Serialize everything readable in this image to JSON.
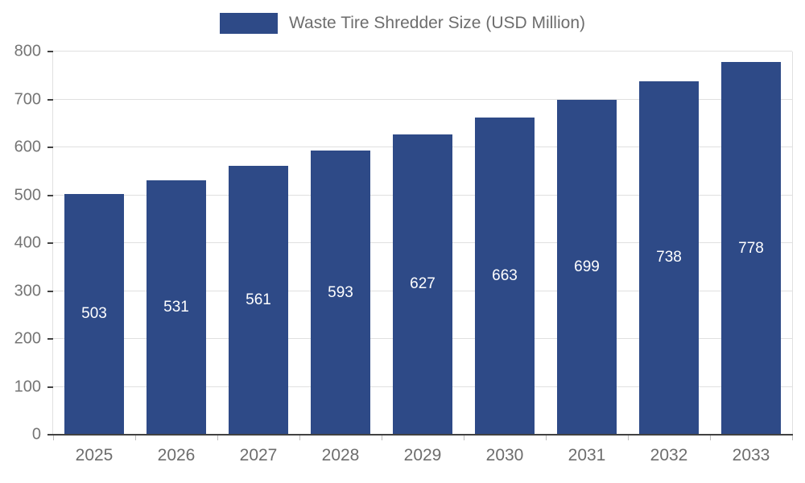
{
  "chart_data": {
    "type": "bar",
    "title": "Waste Tire Shredder Size (USD Million)",
    "categories": [
      "2025",
      "2026",
      "2027",
      "2028",
      "2029",
      "2030",
      "2031",
      "2032",
      "2033"
    ],
    "values": [
      503,
      531,
      561,
      593,
      627,
      663,
      699,
      738,
      778
    ],
    "xlabel": "",
    "ylabel": "",
    "ylim": [
      0,
      800
    ],
    "yticks": [
      0,
      100,
      200,
      300,
      400,
      500,
      600,
      700,
      800
    ],
    "grid": true,
    "legend_position": "top",
    "bar_labels_inside": true
  },
  "colors": {
    "bar": "#2E4A87",
    "grid": "#e0e0e0",
    "axis": "#424242",
    "y_tick_text": "#757575",
    "x_tick_text": "#6d6d6d",
    "bar_label_text": "#ffffff",
    "background": "#ffffff"
  }
}
